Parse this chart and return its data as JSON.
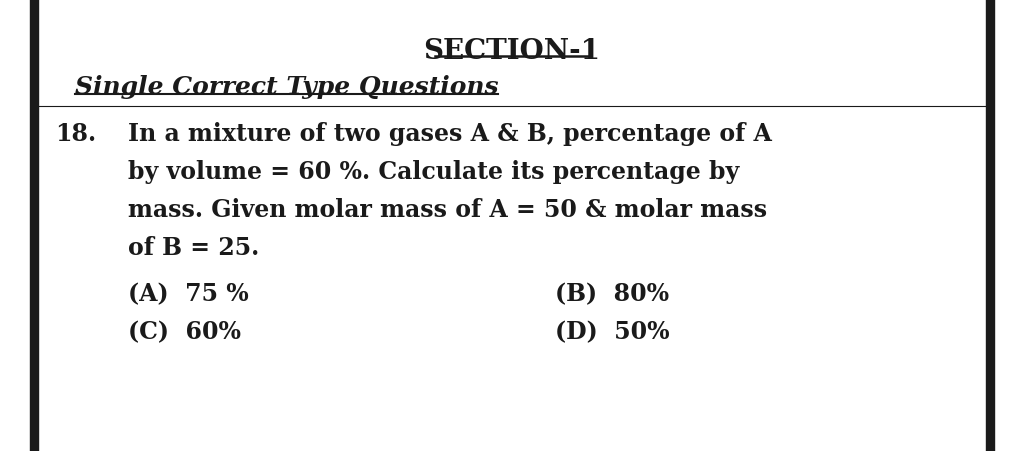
{
  "background_color": "#ffffff",
  "left_bar_color": "#1a1a1a",
  "right_bar_color": "#1a1a1a",
  "section_title": "SECTION-1",
  "subtitle": "Single Correct Type Questions",
  "question_number": "18.",
  "question_text_line1": "In a mixture of two gases A & B, percentage of A",
  "question_text_line2": "by volume = 60 %. Calculate its percentage by",
  "question_text_line3": "mass. Given molar mass of A = 50 & molar mass",
  "question_text_line4": "of B = 25.",
  "option_A": "(A)  75 %",
  "option_B": "(B)  80%",
  "option_C": "(C)  60%",
  "option_D": "(D)  50%",
  "text_color": "#1a1a1a",
  "font_size_title": 20,
  "font_size_subtitle": 18,
  "font_size_body": 17,
  "fig_width": 10.24,
  "fig_height": 4.52
}
